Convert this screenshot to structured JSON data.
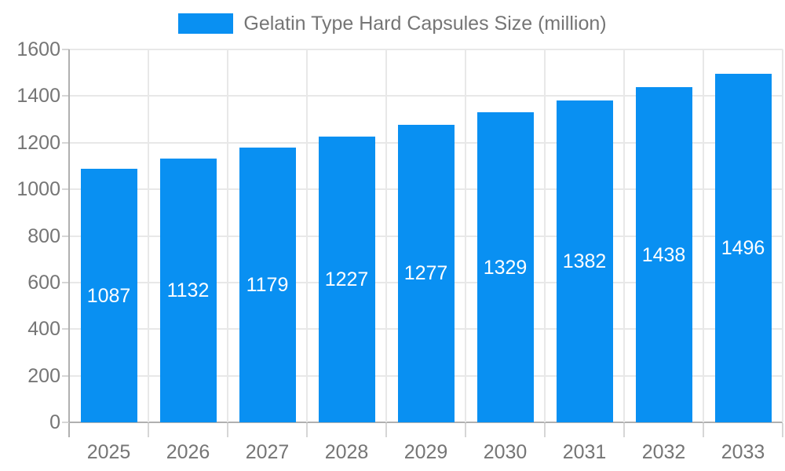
{
  "legend": {
    "label": "Gelatin Type Hard Capsules Size (million)"
  },
  "colors": {
    "bar": "#0990f2",
    "axis_text": "#757575",
    "value_label_text": "#ffffff",
    "grid_light": "#e8e8e8",
    "axis_line": "#b0b0b0",
    "tick": "#d6d6d6"
  },
  "chart_data": {
    "type": "bar",
    "title": "Gelatin Type Hard Capsules Size (million)",
    "categories": [
      "2025",
      "2026",
      "2027",
      "2028",
      "2029",
      "2030",
      "2031",
      "2032",
      "2033"
    ],
    "values": [
      1087,
      1132,
      1179,
      1227,
      1277,
      1329,
      1382,
      1438,
      1496
    ],
    "series": [
      {
        "name": "Gelatin Type Hard Capsules Size (million)",
        "values": [
          1087,
          1132,
          1179,
          1227,
          1277,
          1329,
          1382,
          1438,
          1496
        ]
      }
    ],
    "xlabel": "",
    "ylabel": "",
    "ylim": [
      0,
      1600
    ],
    "yticks": [
      0,
      200,
      400,
      600,
      800,
      1000,
      1200,
      1400,
      1600
    ],
    "grid": true,
    "vertical_gridlines": true,
    "legend_position": "top",
    "value_labels": "inside-center"
  }
}
